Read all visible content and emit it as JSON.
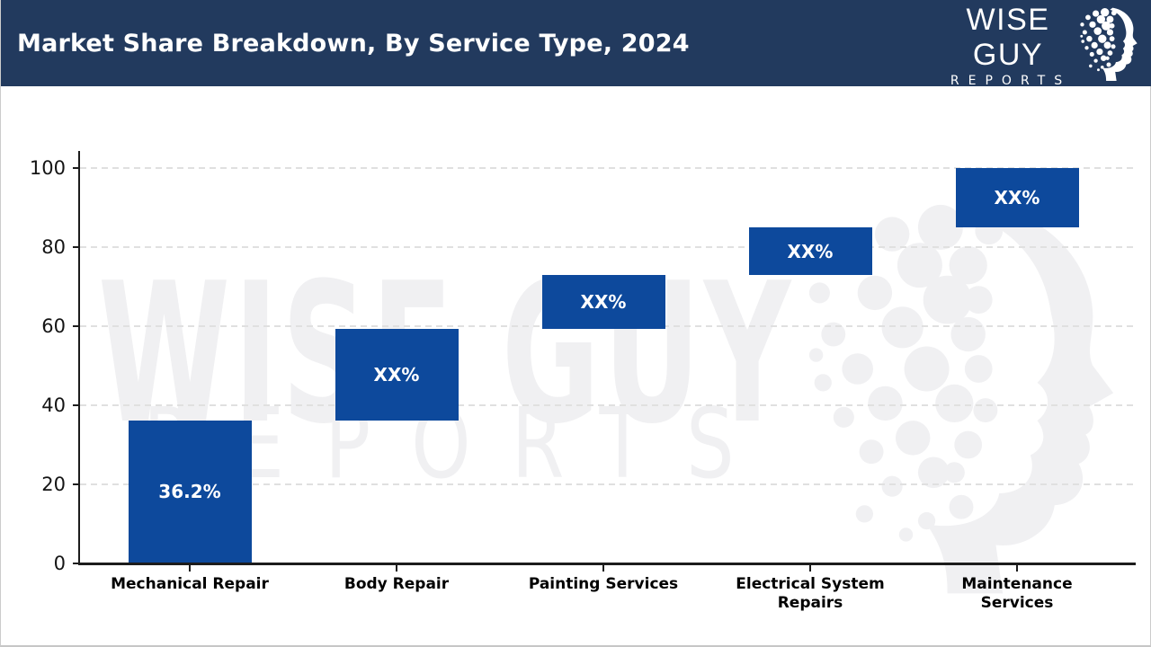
{
  "header": {
    "title": "Market Share Breakdown, By Service Type, 2024",
    "logo": {
      "line1": "WISE GUY",
      "line2": "REPORTS"
    }
  },
  "watermark": {
    "line1": "WISE GUY",
    "line2": "REPORTS"
  },
  "chart_data": {
    "type": "bar",
    "subtype": "waterfall",
    "title": "Market Share Breakdown, By Service Type, 2024",
    "categories": [
      "Mechanical Repair",
      "Body Repair",
      "Painting Services",
      "Electrical System Repairs",
      "Maintenance Services"
    ],
    "category_label_lines": [
      [
        "Mechanical Repair"
      ],
      [
        "Body Repair"
      ],
      [
        "Painting Services"
      ],
      [
        "Electrical System",
        "Repairs"
      ],
      [
        "Maintenance",
        "Services"
      ]
    ],
    "segments": [
      {
        "category": "Mechanical Repair",
        "start": 0,
        "end": 36.2,
        "label": "36.2%"
      },
      {
        "category": "Body Repair",
        "start": 36.2,
        "end": 59.3,
        "label": "XX%"
      },
      {
        "category": "Painting Services",
        "start": 59.3,
        "end": 72.9,
        "label": "XX%"
      },
      {
        "category": "Electrical System Repairs",
        "start": 72.9,
        "end": 84.9,
        "label": "XX%"
      },
      {
        "category": "Maintenance Services",
        "start": 84.9,
        "end": 100,
        "label": "XX%"
      }
    ],
    "xlabel": "",
    "ylabel": "",
    "yticks": [
      0,
      20,
      40,
      60,
      80,
      100
    ],
    "ylim": [
      0,
      104
    ],
    "grid": "horizontal-dashed",
    "legend": "none",
    "bar_color": "#0d499c",
    "value_label_color": "#ffffff"
  },
  "colors": {
    "header_bg": "#223a5e",
    "bar": "#0d499c",
    "axis": "#1c1c1c",
    "grid": "#e0e0e0",
    "watermark": "#f0f0f2"
  }
}
